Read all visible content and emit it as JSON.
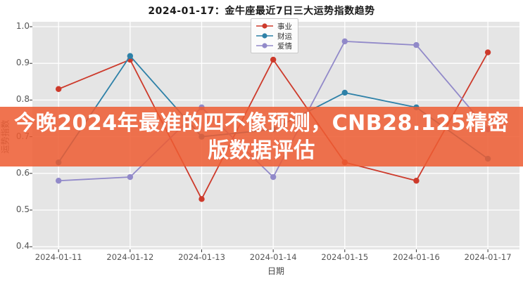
{
  "title": "2024-01-17：金牛座最近7日三大运势指数趋势",
  "watermark": {
    "line1": "今晚2024年最准的四不像预测，CNB28.125精密",
    "line2": "版数据评估",
    "bg_color": "#ee5a30",
    "text_color": "#ffffff"
  },
  "chart_data": {
    "type": "line",
    "title": "2024-01-17：金牛座最近7日三大运势指数趋势",
    "xlabel": "日期",
    "ylabel": "运势指数",
    "x": [
      "2024-01-11",
      "2024-01-12",
      "2024-01-13",
      "2024-01-14",
      "2024-01-15",
      "2024-01-16",
      "2024-01-17"
    ],
    "series": [
      {
        "name": "事业",
        "color": "#cd3a2b",
        "values": [
          0.83,
          0.91,
          0.53,
          0.91,
          0.63,
          0.58,
          0.93
        ]
      },
      {
        "name": "财运",
        "color": "#2e81a8",
        "values": [
          0.63,
          0.92,
          0.7,
          0.72,
          0.82,
          0.78,
          0.64
        ]
      },
      {
        "name": "爱情",
        "color": "#9189c9",
        "values": [
          0.58,
          0.59,
          0.78,
          0.59,
          0.96,
          0.95,
          0.72
        ]
      }
    ],
    "ylim": [
      0.4,
      1.0
    ],
    "yticks": [
      1.0,
      0.9,
      0.8,
      0.7,
      0.6,
      0.5,
      0.4
    ],
    "grid": true,
    "plot_bg": "#e5e5e5",
    "grid_color": "#ffffff",
    "legend_position": "top-center"
  }
}
